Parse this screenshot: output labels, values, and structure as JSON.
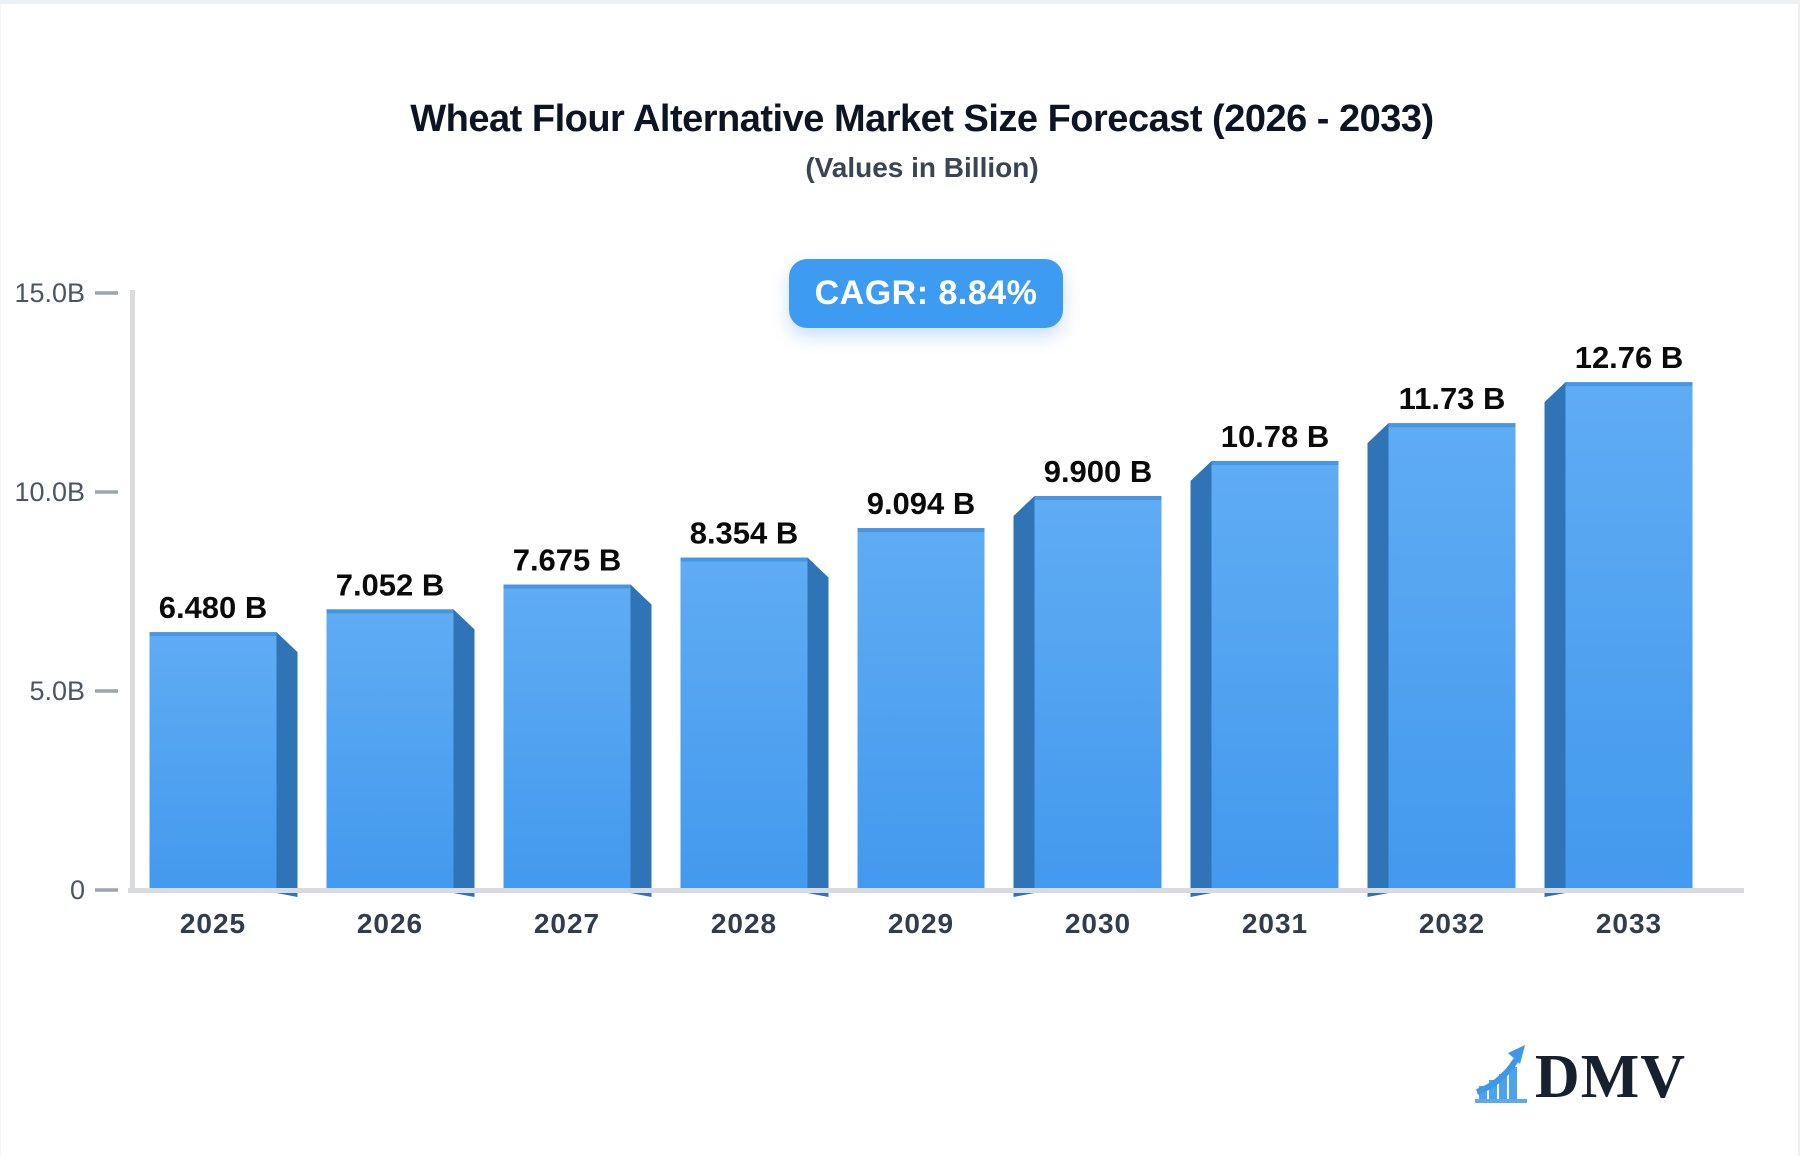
{
  "page": {
    "title": "Wheat Flour Alternative Market Size Forecast (2026 - 2033)",
    "subtitle": "(Values in Billion)",
    "cagr_label": "CAGR: 8.84%"
  },
  "logo": {
    "text": "DMV",
    "icon": "growth-chart-icon"
  },
  "colors": {
    "accent_blue": "#3d9bf2",
    "bar_face_top": "#5facf3",
    "bar_face_bottom": "#4399ee",
    "bar_top_edge": "#3c8bd9",
    "bar_side": "#2e74b6",
    "axis_line": "#d8dce1",
    "tick_dash": "#9aa5b1",
    "tick_label": "#4a5663",
    "year_label": "#303d4c",
    "value_label": "#0a0a0a",
    "logo_blue": "#4da2ec",
    "logo_navy": "#16202e"
  },
  "chart_data": {
    "type": "bar",
    "title": "Wheat Flour Alternative Market Size Forecast (2026 - 2033)",
    "subtitle": "(Values in Billion)",
    "annotation": "CAGR: 8.84%",
    "unit": "Billion",
    "categories": [
      "2025",
      "2026",
      "2027",
      "2028",
      "2029",
      "2030",
      "2031",
      "2032",
      "2033"
    ],
    "values": [
      6.48,
      7.052,
      7.675,
      8.354,
      9.094,
      9.9,
      10.78,
      11.73,
      12.76
    ],
    "value_labels": [
      "6.480 B",
      "7.052 B",
      "7.675 B",
      "8.354 B",
      "9.094 B",
      "9.900 B",
      "10.78 B",
      "11.73 B",
      "12.76 B"
    ],
    "y_ticks": [
      {
        "value": 0,
        "label": "0"
      },
      {
        "value": 5,
        "label": "5.0B"
      },
      {
        "value": 10,
        "label": "10.0B"
      },
      {
        "value": 15,
        "label": "15.0B"
      }
    ],
    "ylim": [
      0,
      15
    ],
    "grid": false,
    "legend": "none",
    "style": "3d-perspective-bars"
  }
}
